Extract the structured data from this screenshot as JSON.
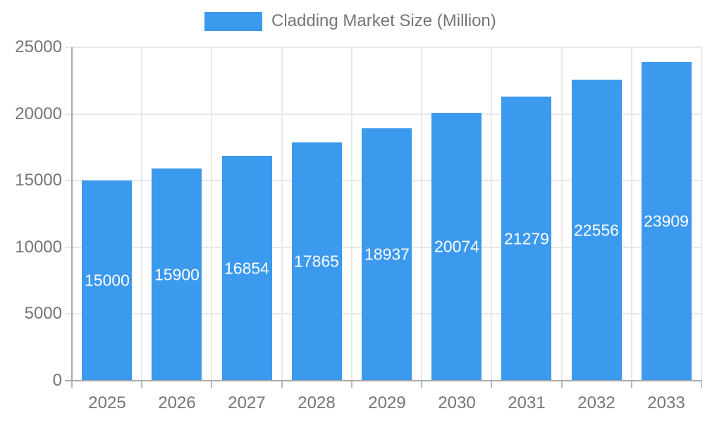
{
  "legend": {
    "label": "Cladding Market Size (Million)"
  },
  "colors": {
    "bar": "#3b99ee",
    "bar_label": "#ffffff",
    "axis_text": "#757575",
    "grid": "#e8e8e8",
    "axis_line": "#a8a8a8",
    "tick": "#b8b8b8",
    "background": "#ffffff"
  },
  "chart_data": {
    "type": "bar",
    "title": "Cladding Market Size (Million)",
    "series_name": "Cladding Market Size (Million)",
    "categories": [
      "2025",
      "2026",
      "2027",
      "2028",
      "2029",
      "2030",
      "2031",
      "2032",
      "2033"
    ],
    "values": [
      15000,
      15900,
      16854,
      17865,
      18937,
      20074,
      21279,
      22556,
      23909
    ],
    "xlabel": "",
    "ylabel": "",
    "ylim": [
      0,
      25000
    ],
    "yticks": [
      0,
      5000,
      10000,
      15000,
      20000,
      25000
    ],
    "legend_position": "top",
    "grid": true,
    "bar_label_position": "inside-center"
  }
}
